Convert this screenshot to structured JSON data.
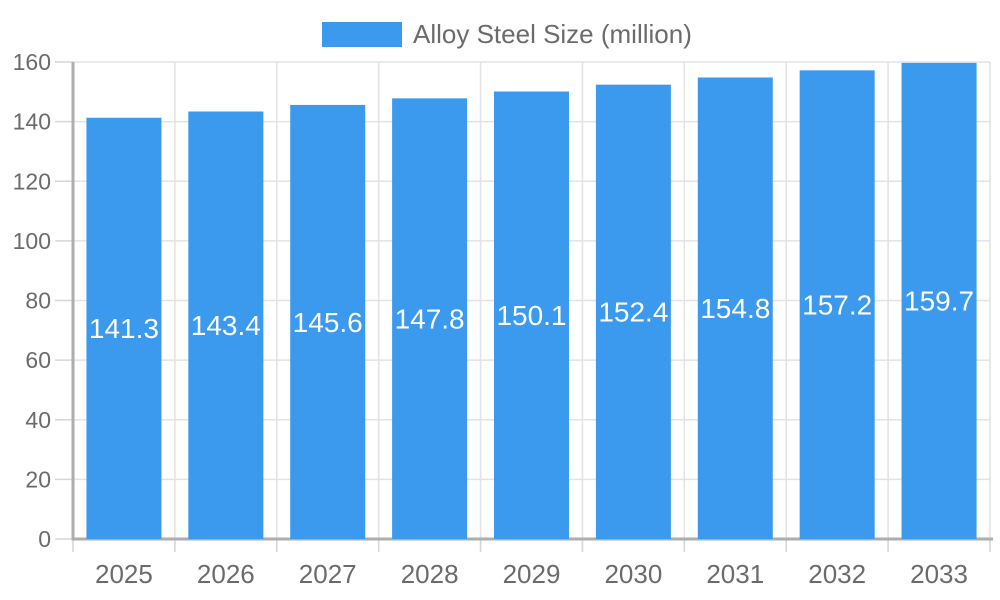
{
  "chart_data": {
    "type": "bar",
    "title": "Alloy Steel Size (million)",
    "legend_entries": [
      "Alloy Steel Size (million)"
    ],
    "legend_position": "top-center",
    "categories": [
      "2025",
      "2026",
      "2027",
      "2028",
      "2029",
      "2030",
      "2031",
      "2032",
      "2033"
    ],
    "series": [
      {
        "name": "Alloy Steel Size (million)",
        "values": [
          141.3,
          143.4,
          145.6,
          147.8,
          150.1,
          152.4,
          154.8,
          157.2,
          159.7
        ]
      }
    ],
    "value_labels": [
      "141.3",
      "143.4",
      "145.6",
      "147.8",
      "150.1",
      "152.4",
      "154.8",
      "157.2",
      "159.7"
    ],
    "xlabel": "",
    "ylabel": "",
    "ylim": [
      0,
      160
    ],
    "ytick_interval": 20,
    "ytick_labels": [
      "0",
      "20",
      "40",
      "60",
      "80",
      "100",
      "120",
      "140",
      "160"
    ],
    "grid": true,
    "colors": {
      "bar": "#3B99EE",
      "value_label": "#FFFFFF",
      "axis_label": "#6B6B6B",
      "legend_text": "#6B6B6B",
      "grid_line": "#E3E3E3",
      "tick_line": "#D6D6D6",
      "axis_line": "#ADADAD",
      "background": "#FFFFFF"
    }
  }
}
